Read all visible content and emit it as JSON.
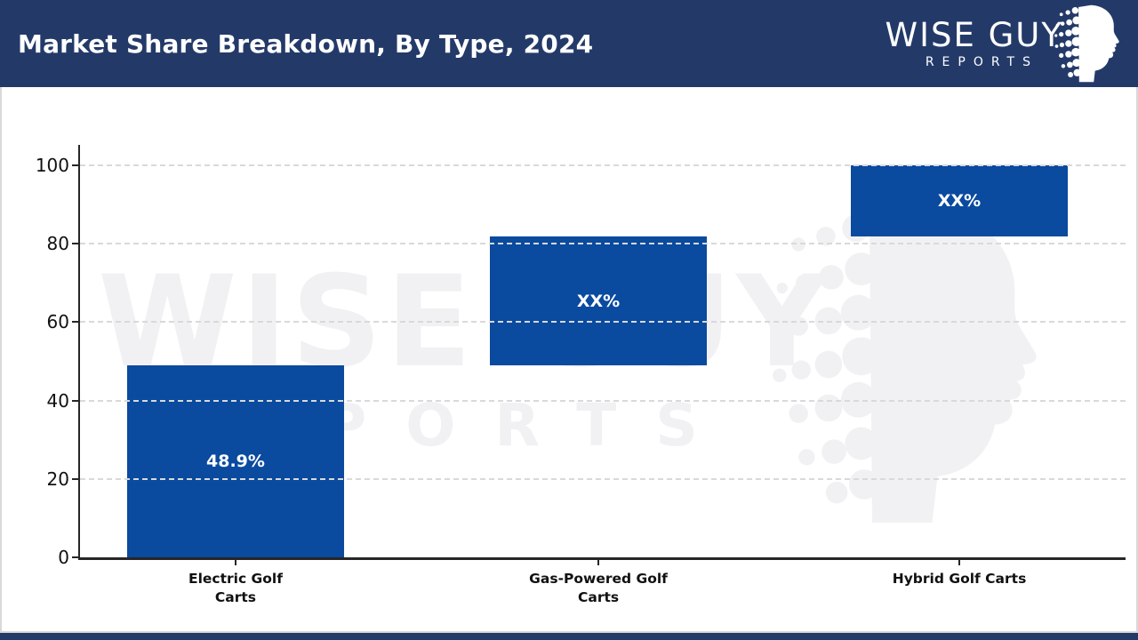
{
  "header": {
    "title": "Market Share Breakdown, By Type, 2024",
    "logo": {
      "line1": "WISE GUY",
      "line2": "REPORTS"
    }
  },
  "watermark": {
    "line1": "WISE GUY",
    "line2": "REPORTS"
  },
  "chart_data": {
    "type": "bar",
    "subtype": "waterfall",
    "title": "Market Share Breakdown, By Type, 2024",
    "categories": [
      [
        "Electric Golf",
        "Carts"
      ],
      [
        "Gas-Powered Golf",
        "Carts"
      ],
      [
        "Hybrid Golf Carts"
      ]
    ],
    "bars": [
      {
        "category": "Electric Golf Carts",
        "label": "48.9%",
        "start": 0,
        "end": 48.9
      },
      {
        "category": "Gas-Powered Golf Carts",
        "label": "XX%",
        "start": 48.9,
        "end": 81.9
      },
      {
        "category": "Hybrid Golf Carts",
        "label": "XX%",
        "start": 81.9,
        "end": 100
      }
    ],
    "ylim": [
      0,
      100
    ],
    "yticks": [
      0,
      20,
      40,
      60,
      80,
      100
    ],
    "xlabel": "",
    "ylabel": "",
    "grid": "horizontal-dashed",
    "legend": "none",
    "colors": {
      "bar": "#0a4a9f",
      "header_bg": "#233a69",
      "axis": "#262626",
      "grid": "#d9d9d9",
      "bar_label": "#ffffff",
      "watermark": "#f1f1f3"
    }
  }
}
